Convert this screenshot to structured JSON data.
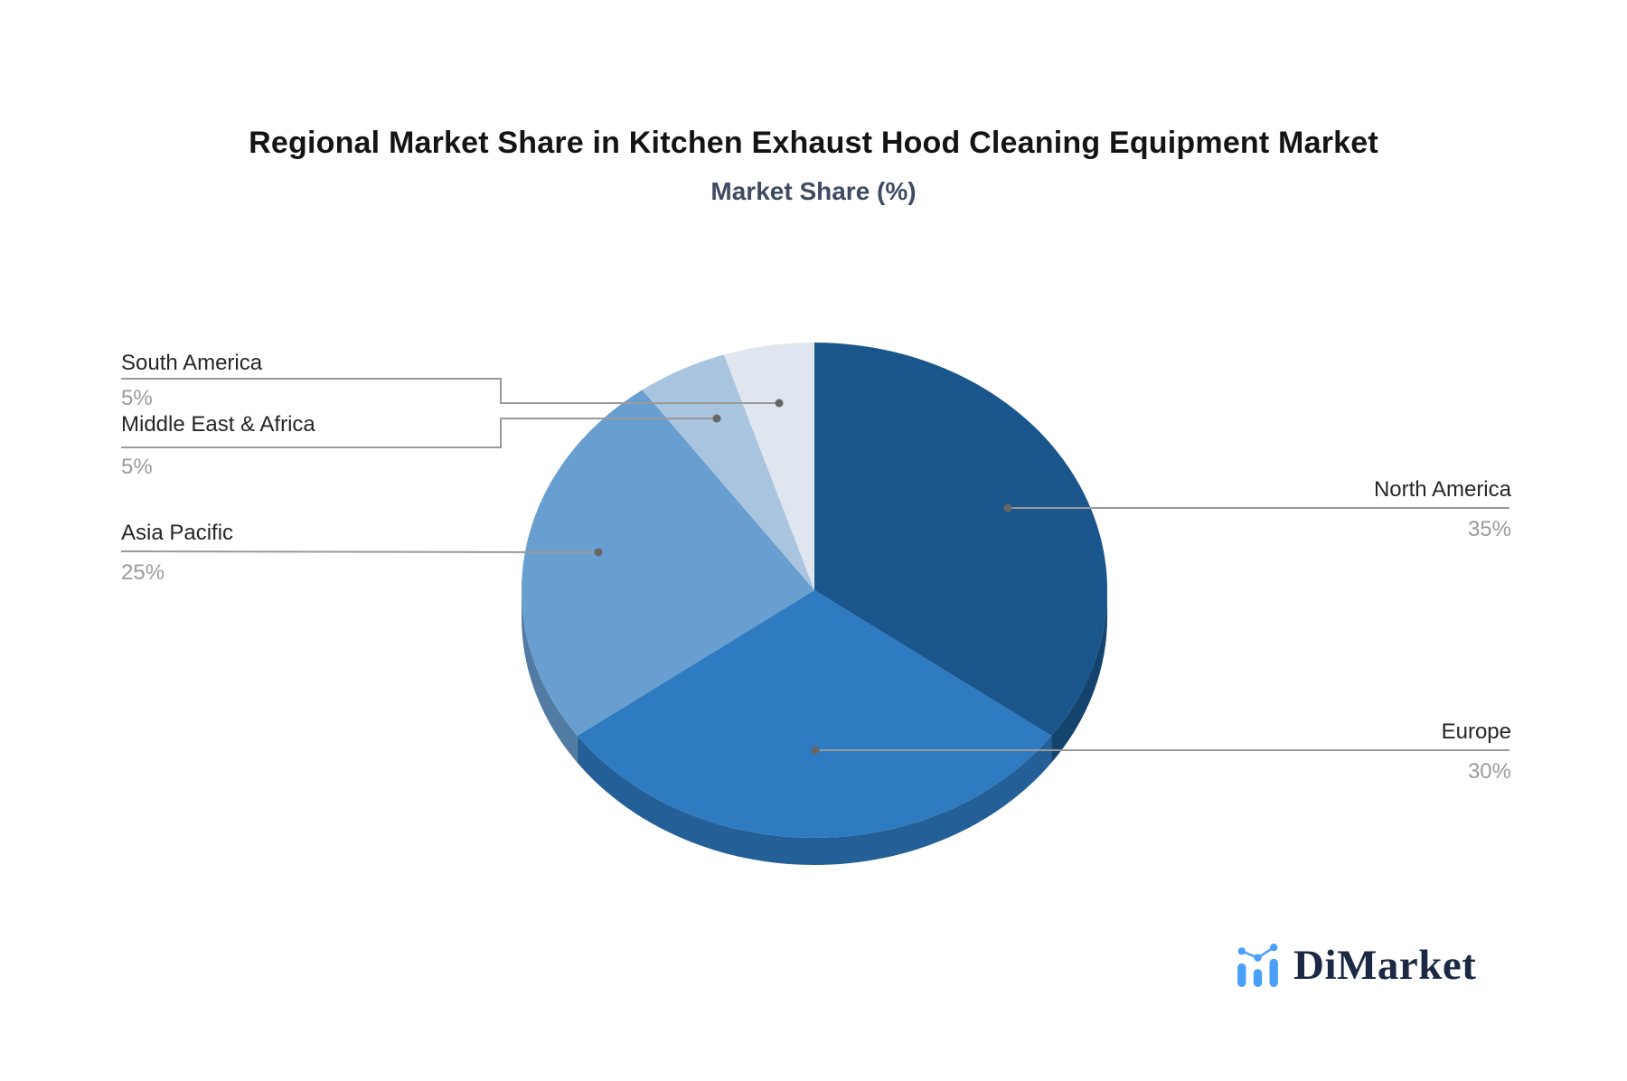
{
  "chart_data": {
    "type": "pie",
    "style": "pie-3d-depth",
    "title": "Regional Market Share in Kitchen Exhaust Hood Cleaning Equipment Market",
    "subtitle": "Market Share (%)",
    "unit": "%",
    "direction": "clockwise",
    "start_angle_deg": 0,
    "categories": [
      "North America",
      "Europe",
      "Asia Pacific",
      "Middle East & Africa",
      "South America"
    ],
    "values": [
      35,
      30,
      25,
      5,
      5
    ],
    "slices": [
      {
        "name": "North America",
        "value": 35,
        "pct": "35%",
        "color": "#1A568C",
        "label_side": "right"
      },
      {
        "name": "Europe",
        "value": 30,
        "pct": "30%",
        "color": "#2E7BC1",
        "label_side": "right"
      },
      {
        "name": "Asia Pacific",
        "value": 25,
        "pct": "25%",
        "color": "#689ED0",
        "label_side": "left"
      },
      {
        "name": "Middle East & Africa",
        "value": 5,
        "pct": "5%",
        "color": "#A8C4DE",
        "label_side": "left"
      },
      {
        "name": "South America",
        "value": 5,
        "pct": "5%",
        "color": "#DFE6EF",
        "label_side": "left"
      }
    ],
    "legend_position": "none",
    "label_style": {
      "name_color": "#262626",
      "value_color": "#9B9B9B",
      "leader_line_color": "#999999",
      "leader_dot_color": "#666666"
    }
  },
  "brand": {
    "name": "DiMarket"
  },
  "colors": {
    "background": "#FFFFFF",
    "title": "#141414",
    "subtitle": "#3E4C63",
    "logo_icon_blue": "#4AA0F8",
    "logo_text_navy": "#1B2944"
  }
}
